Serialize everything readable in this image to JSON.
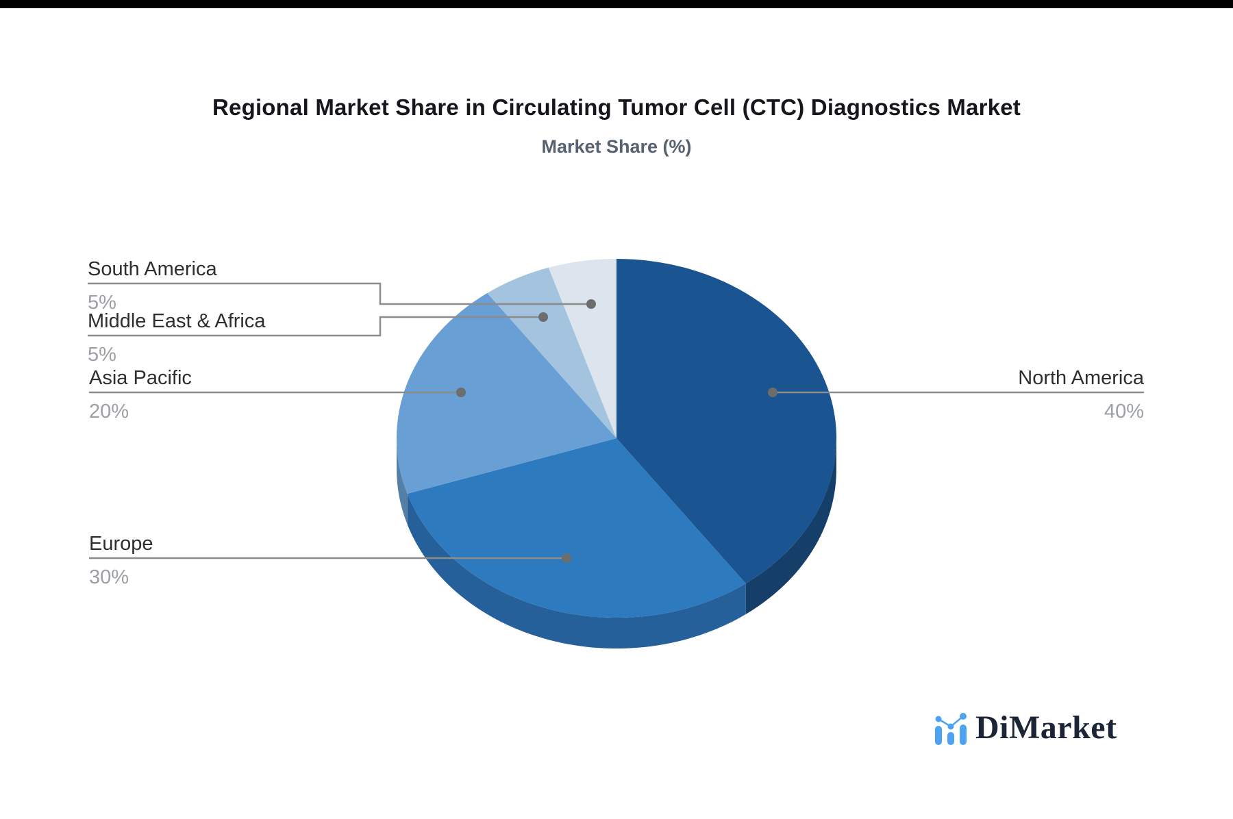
{
  "page": {
    "title": "Regional Market Share in Circulating Tumor Cell (CTC) Diagnostics Market",
    "subtitle": "Market Share (%)"
  },
  "logo": {
    "text": "DiMarket",
    "icon": "bar-chart-with-trend-dots-icon"
  },
  "chart_data": {
    "type": "pie",
    "title": "Regional Market Share in Circulating Tumor Cell (CTC) Diagnostics Market",
    "subtitle": "Market Share (%)",
    "unit": "%",
    "effect": "3d",
    "start_angle_deg": 0,
    "direction": "clockwise",
    "legend_position": "none",
    "label_style": "leader-lines-with-dots",
    "slices": [
      {
        "label": "North America",
        "value": 40,
        "display": "40%",
        "color": "#1A5591",
        "side_color": "#153F68"
      },
      {
        "label": "Europe",
        "value": 30,
        "display": "30%",
        "color": "#2E7ABE",
        "side_color": "#26609A"
      },
      {
        "label": "Asia Pacific",
        "value": 20,
        "display": "20%",
        "color": "#689FD4",
        "side_color": "#567FA8"
      },
      {
        "label": "Middle East & Africa",
        "value": 5,
        "display": "5%",
        "color": "#A3C3DE",
        "side_color": "#88A9C6"
      },
      {
        "label": "South America",
        "value": 5,
        "display": "5%",
        "color": "#DCE4EE",
        "side_color": "#BCC8D8"
      }
    ]
  },
  "colors": {
    "background": "#FFFFFF",
    "top_bar": "#000000",
    "title": "#16161D",
    "subtitle": "#566270",
    "leader_line": "#8C8C8C",
    "dot": "#6D6D6D",
    "label_text": "#2E2E2E",
    "value_text": "#9CA0A4",
    "logo_text": "#1B2535",
    "logo_icon": "#4DA3F2"
  }
}
